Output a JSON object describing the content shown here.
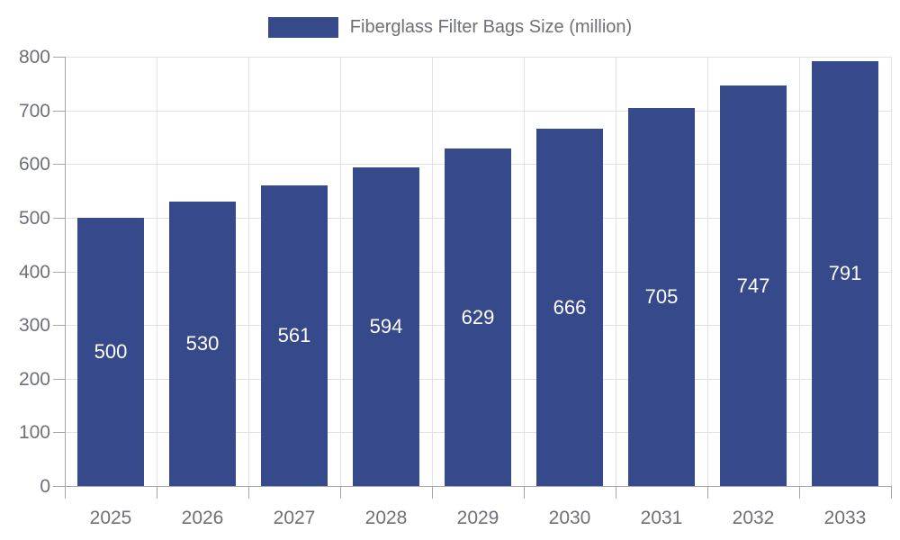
{
  "chart_data": {
    "type": "bar",
    "title": "",
    "legend": {
      "label": "Fiberglass Filter Bags Size (million)",
      "position": "top-center"
    },
    "categories": [
      "2025",
      "2026",
      "2027",
      "2028",
      "2029",
      "2030",
      "2031",
      "2032",
      "2033"
    ],
    "series": [
      {
        "name": "Fiberglass Filter Bags Size (million)",
        "values": [
          500,
          530,
          561,
          594,
          629,
          666,
          705,
          747,
          791
        ]
      }
    ],
    "xlabel": "",
    "ylabel": "",
    "ylim": [
      0,
      800
    ],
    "ytick_interval": 100,
    "ytick_labels": [
      "0",
      "100",
      "200",
      "300",
      "400",
      "500",
      "600",
      "700",
      "800"
    ],
    "grid": true,
    "bar_labels_inside": true,
    "colors": {
      "bar": "#36498B",
      "axis": "#A6A6A6",
      "grid": "#E2E2E2",
      "tick_label": "#6E7079",
      "bar_label": "#FFFFFF",
      "background": "#FFFFFF"
    }
  }
}
